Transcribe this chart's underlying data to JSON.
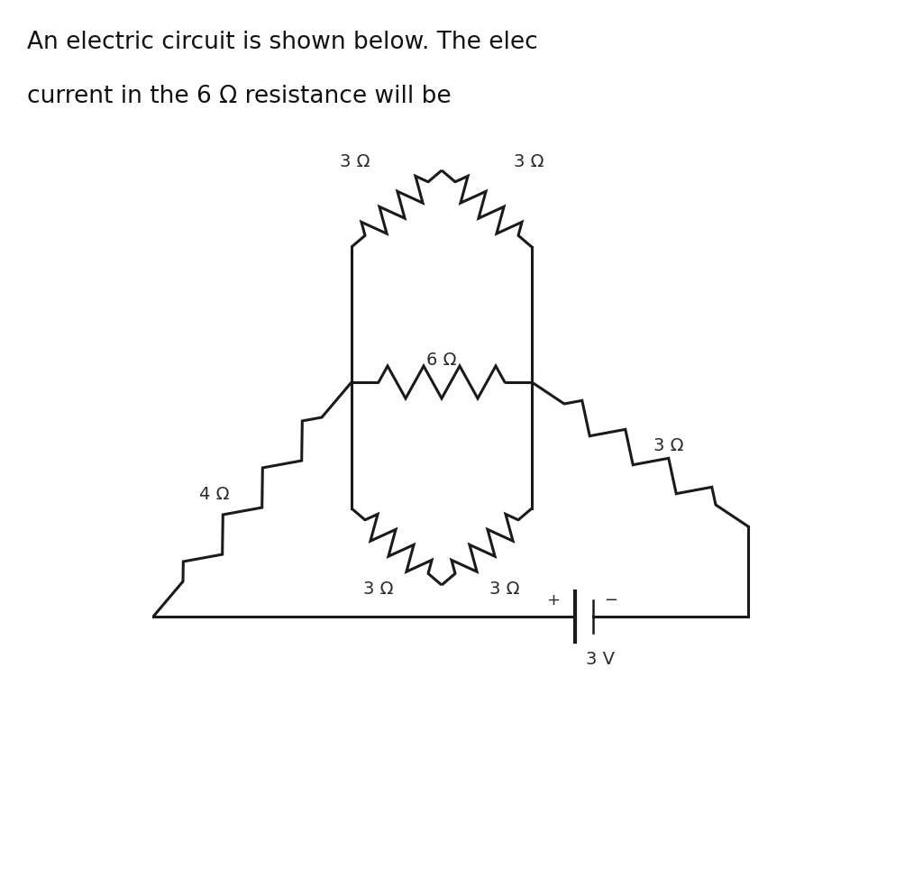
{
  "title_line1": "An electric circuit is shown below. The elec",
  "title_line2": "current in the 6 Ω resistance will be",
  "bg_color": "#ffffff",
  "line_color": "#1a1a1a",
  "text_color": "#2a2a2a",
  "resistor_labels": {
    "top_left": "3 Ω",
    "top_right": "3 Ω",
    "middle": "6 Ω",
    "bottom_left": "3 Ω",
    "bottom_right": "3 Ω",
    "right_diag": "3 Ω",
    "left_diag": "4 Ω"
  },
  "battery_label": "3 V",
  "figsize": [
    10.24,
    9.84
  ],
  "dpi": 100
}
